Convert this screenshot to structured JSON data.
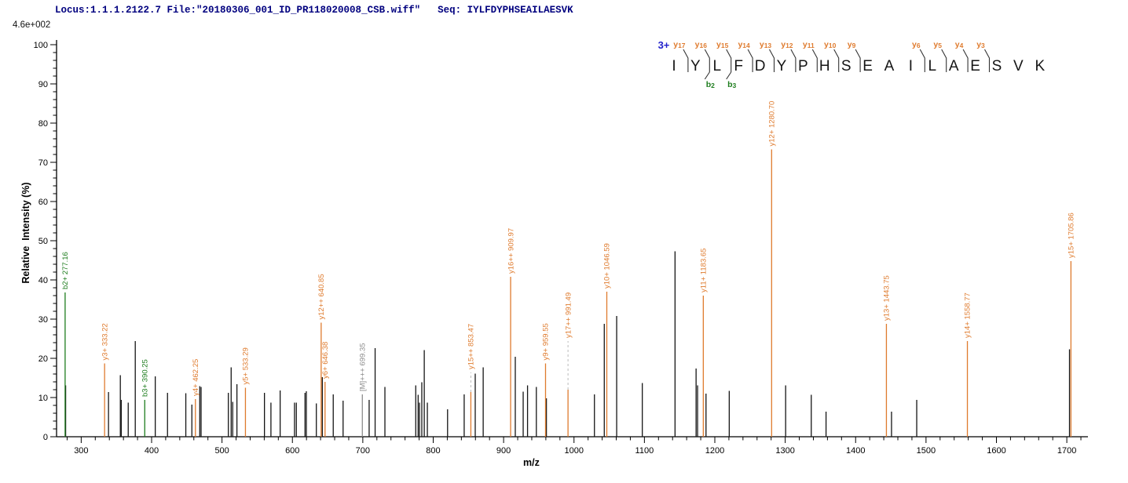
{
  "header": {
    "locus_file": "Locus:1.1.1.2122.7 File:\"20180306_001_ID_PR118020008_CSB.wiff\"",
    "seq_label": "Seq: IYLFDYPHSEAILAESVK",
    "max_intensity_ref": "4.6e+002"
  },
  "chart_data": {
    "type": "bar",
    "subtype": "ms2-fragment-ion-spectrum",
    "title": "",
    "xlabel": "m/z",
    "ylabel": "Relative  Intensity (%)",
    "xlim": [
      265,
      1730
    ],
    "ylim": [
      0,
      100
    ],
    "x_major_tick_start": 300,
    "x_major_tick_end": 1700,
    "x_major_tick_step": 100,
    "x_minor_tick_step": 20,
    "y_major_tick_step": 10,
    "y_minor_tick_step": 2,
    "legend": "none",
    "grid": false,
    "colors": {
      "black_peak": "#151515",
      "y_ion": "#DF7B2E",
      "b_ion": "#1E7D1E",
      "precursor": "#8C8C8C",
      "leader_dash": "#BBBBBB",
      "header_navy": "#00007F",
      "charge_blue": "#2222CC"
    },
    "precursor_charge": "3+",
    "sequence": "IYLFDYPHSEAILAESVK",
    "sequence_y_ions": [
      {
        "gap": 1,
        "label": "y",
        "num": "17"
      },
      {
        "gap": 2,
        "label": "y",
        "num": "16"
      },
      {
        "gap": 3,
        "label": "y",
        "num": "15"
      },
      {
        "gap": 4,
        "label": "y",
        "num": "14"
      },
      {
        "gap": 5,
        "label": "y",
        "num": "13"
      },
      {
        "gap": 6,
        "label": "y",
        "num": "12"
      },
      {
        "gap": 7,
        "label": "y",
        "num": "11"
      },
      {
        "gap": 8,
        "label": "y",
        "num": "10"
      },
      {
        "gap": 9,
        "label": "y",
        "num": "9"
      },
      {
        "gap": 12,
        "label": "y",
        "num": "6"
      },
      {
        "gap": 13,
        "label": "y",
        "num": "5"
      },
      {
        "gap": 14,
        "label": "y",
        "num": "4"
      },
      {
        "gap": 15,
        "label": "y",
        "num": "3"
      }
    ],
    "sequence_b_ions": [
      {
        "gap": 2,
        "label": "b",
        "num": "2"
      },
      {
        "gap": 3,
        "label": "b",
        "num": "3"
      }
    ],
    "peaks": [
      {
        "mz": 277.16,
        "i": 36.8,
        "s": "b",
        "label": "b2+ 277.16"
      },
      {
        "mz": 277.9,
        "i": 13.1,
        "s": "k"
      },
      {
        "mz": 333.22,
        "i": 18.7,
        "s": "y",
        "label": "y3+ 333.22"
      },
      {
        "mz": 338.8,
        "i": 11.4,
        "s": "k"
      },
      {
        "mz": 355.6,
        "i": 15.7,
        "s": "k"
      },
      {
        "mz": 356.9,
        "i": 9.4,
        "s": "k"
      },
      {
        "mz": 366.8,
        "i": 8.7,
        "s": "k"
      },
      {
        "mz": 376.8,
        "i": 24.4,
        "s": "k"
      },
      {
        "mz": 390.25,
        "i": 9.4,
        "s": "b",
        "label": "b3+ 390.25"
      },
      {
        "mz": 405.2,
        "i": 15.4,
        "s": "k"
      },
      {
        "mz": 422.6,
        "i": 11.2,
        "s": "k"
      },
      {
        "mz": 448.6,
        "i": 11.1,
        "s": "k"
      },
      {
        "mz": 457.2,
        "i": 8.2,
        "s": "k"
      },
      {
        "mz": 462.25,
        "i": 9.6,
        "s": "y",
        "label": "y4+ 462.25"
      },
      {
        "mz": 468.4,
        "i": 12.9,
        "s": "k"
      },
      {
        "mz": 470.3,
        "i": 12.7,
        "s": "k"
      },
      {
        "mz": 509.0,
        "i": 11.2,
        "s": "k"
      },
      {
        "mz": 513.0,
        "i": 17.7,
        "s": "k"
      },
      {
        "mz": 515.2,
        "i": 8.9,
        "s": "k"
      },
      {
        "mz": 521.2,
        "i": 13.4,
        "s": "k"
      },
      {
        "mz": 533.29,
        "i": 12.5,
        "s": "y",
        "label": "y5+ 533.29"
      },
      {
        "mz": 560.3,
        "i": 11.2,
        "s": "k"
      },
      {
        "mz": 569.5,
        "i": 8.7,
        "s": "k"
      },
      {
        "mz": 582.6,
        "i": 11.8,
        "s": "k"
      },
      {
        "mz": 603.0,
        "i": 8.7,
        "s": "k"
      },
      {
        "mz": 605.6,
        "i": 8.7,
        "s": "k"
      },
      {
        "mz": 617.9,
        "i": 11.2,
        "s": "k"
      },
      {
        "mz": 619.8,
        "i": 11.6,
        "s": "k"
      },
      {
        "mz": 634.0,
        "i": 8.5,
        "s": "k"
      },
      {
        "mz": 640.85,
        "i": 29.1,
        "s": "y",
        "label": "y12++ 640.85"
      },
      {
        "mz": 642.5,
        "i": 15.2,
        "s": "k"
      },
      {
        "mz": 646.38,
        "i": 14.0,
        "s": "y",
        "label": "y6+ 646.38"
      },
      {
        "mz": 658.0,
        "i": 10.8,
        "s": "k"
      },
      {
        "mz": 672.0,
        "i": 9.2,
        "s": "k"
      },
      {
        "mz": 699.35,
        "i": 10.8,
        "s": "M",
        "label": "[M]+++ 699.35"
      },
      {
        "mz": 709.0,
        "i": 9.4,
        "s": "k"
      },
      {
        "mz": 717.5,
        "i": 22.6,
        "s": "k"
      },
      {
        "mz": 731.4,
        "i": 12.7,
        "s": "k"
      },
      {
        "mz": 775.2,
        "i": 13.1,
        "s": "k"
      },
      {
        "mz": 778.6,
        "i": 10.7,
        "s": "k"
      },
      {
        "mz": 780.5,
        "i": 8.7,
        "s": "k"
      },
      {
        "mz": 783.8,
        "i": 13.9,
        "s": "k"
      },
      {
        "mz": 787.3,
        "i": 22.1,
        "s": "k"
      },
      {
        "mz": 791.7,
        "i": 8.7,
        "s": "k"
      },
      {
        "mz": 820.4,
        "i": 7.0,
        "s": "k"
      },
      {
        "mz": 844.0,
        "i": 10.8,
        "s": "k"
      },
      {
        "mz": 853.47,
        "i": 11.4,
        "dash_to": 16.4,
        "s": "y",
        "label": "y15++ 853.47"
      },
      {
        "mz": 859.7,
        "i": 16.1,
        "s": "k"
      },
      {
        "mz": 871.0,
        "i": 17.7,
        "s": "k"
      },
      {
        "mz": 909.97,
        "i": 40.8,
        "s": "y",
        "label": "y16++ 909.97"
      },
      {
        "mz": 916.6,
        "i": 20.4,
        "s": "k"
      },
      {
        "mz": 927.8,
        "i": 11.5,
        "s": "k"
      },
      {
        "mz": 934.0,
        "i": 13.1,
        "s": "k"
      },
      {
        "mz": 946.5,
        "i": 12.7,
        "s": "k"
      },
      {
        "mz": 959.55,
        "i": 18.7,
        "s": "y",
        "label": "y9+ 959.55"
      },
      {
        "mz": 960.8,
        "i": 9.8,
        "s": "k"
      },
      {
        "mz": 991.49,
        "i": 12.0,
        "dash_to": 24.4,
        "s": "y",
        "label": "y17++ 991.49"
      },
      {
        "mz": 1029.0,
        "i": 10.8,
        "s": "k"
      },
      {
        "mz": 1043.0,
        "i": 28.8,
        "s": "k"
      },
      {
        "mz": 1046.59,
        "i": 37.0,
        "s": "y",
        "label": "y10+ 1046.59"
      },
      {
        "mz": 1060.6,
        "i": 30.8,
        "s": "k"
      },
      {
        "mz": 1097.0,
        "i": 13.7,
        "s": "k"
      },
      {
        "mz": 1143.5,
        "i": 47.3,
        "s": "k"
      },
      {
        "mz": 1173.4,
        "i": 17.4,
        "s": "k"
      },
      {
        "mz": 1175.5,
        "i": 13.1,
        "s": "k"
      },
      {
        "mz": 1183.65,
        "i": 36.0,
        "s": "y",
        "label": "y11+ 1183.65"
      },
      {
        "mz": 1187.5,
        "i": 11.0,
        "s": "k"
      },
      {
        "mz": 1220.5,
        "i": 11.7,
        "s": "k"
      },
      {
        "mz": 1280.7,
        "i": 73.3,
        "s": "y",
        "label": "y12+ 1280.70"
      },
      {
        "mz": 1300.6,
        "i": 13.1,
        "s": "k"
      },
      {
        "mz": 1337.0,
        "i": 10.7,
        "s": "k"
      },
      {
        "mz": 1358.0,
        "i": 6.4,
        "s": "k"
      },
      {
        "mz": 1443.75,
        "i": 28.8,
        "s": "y",
        "label": "y13+ 1443.75"
      },
      {
        "mz": 1451.0,
        "i": 6.4,
        "s": "k"
      },
      {
        "mz": 1486.8,
        "i": 9.4,
        "s": "k"
      },
      {
        "mz": 1558.77,
        "i": 24.4,
        "s": "y",
        "label": "y14+ 1558.77"
      },
      {
        "mz": 1703.8,
        "i": 22.3,
        "s": "k"
      },
      {
        "mz": 1705.86,
        "i": 44.8,
        "s": "y",
        "label": "y15+ 1705.86"
      }
    ]
  }
}
